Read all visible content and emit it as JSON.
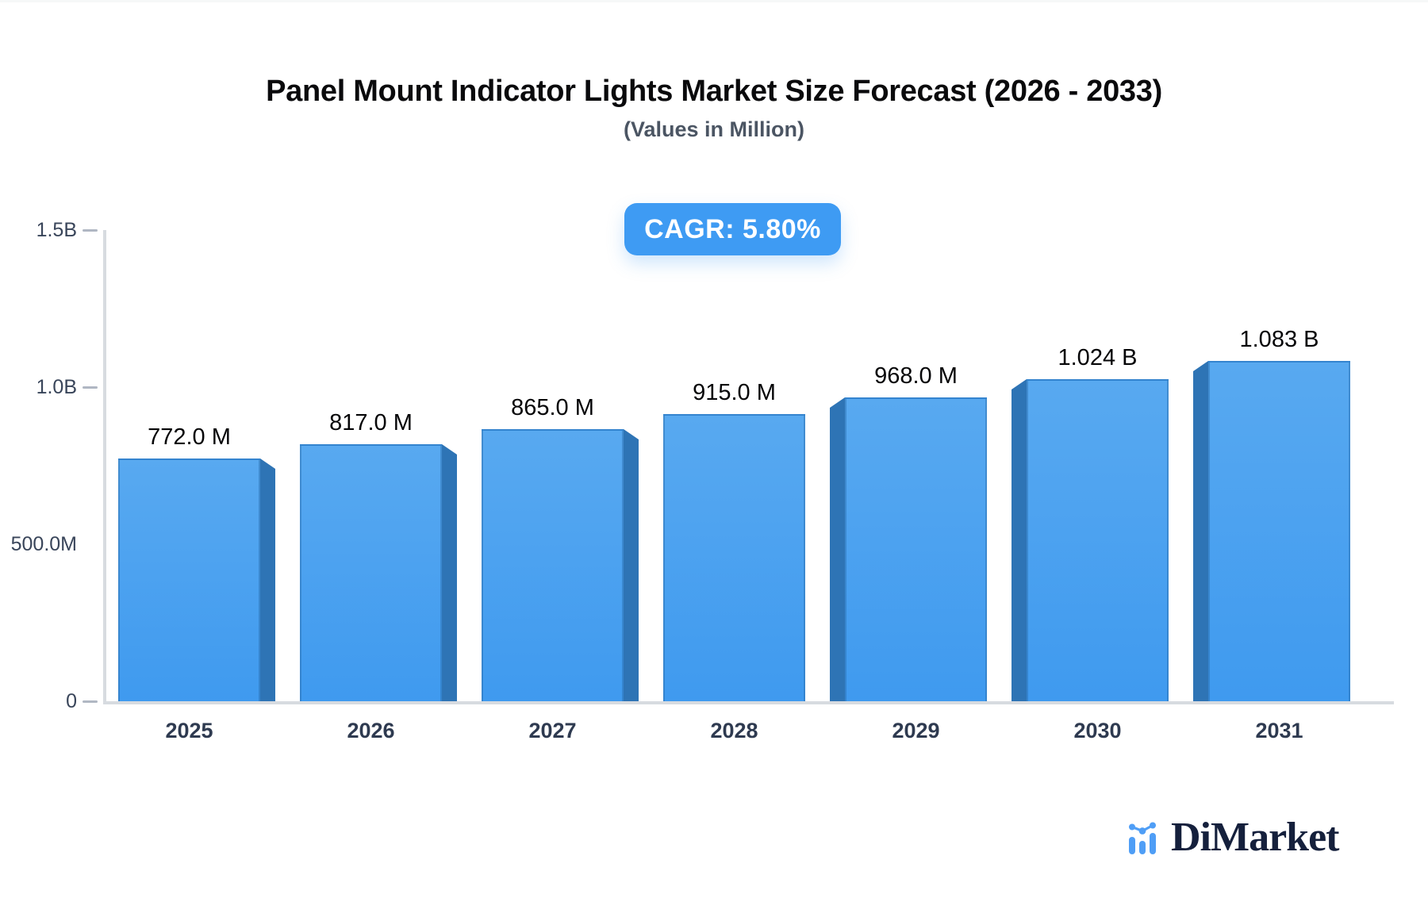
{
  "page": {
    "title": "Panel Mount Indicator Lights Market Size Forecast (2026 - 2033)",
    "subtitle": "(Values in Million)",
    "cagr_badge": "CAGR: 5.80%"
  },
  "chart_data": {
    "type": "bar",
    "title": "Panel Mount Indicator Lights Market Size Forecast (2026 - 2033)",
    "subtitle": "(Values in Million)",
    "cagr_percent": 5.8,
    "categories": [
      "2025",
      "2026",
      "2027",
      "2028",
      "2029",
      "2030",
      "2031"
    ],
    "values_millions": [
      772,
      817,
      865,
      915,
      968,
      1024,
      1083
    ],
    "bar_labels": [
      "772.0 M",
      "817.0 M",
      "865.0 M",
      "915.0 M",
      "968.0 M",
      "1.024 B",
      "1.083 B"
    ],
    "y_ticks": [
      {
        "label": "0",
        "millions": 0,
        "dash": true
      },
      {
        "label": "500.0M",
        "millions": 500,
        "dash": false
      },
      {
        "label": "1.0B",
        "millions": 1000,
        "dash": true
      },
      {
        "label": "1.5B",
        "millions": 1500,
        "dash": true
      }
    ],
    "ylim_millions": [
      0,
      1500
    ],
    "grid": false,
    "legend": "none",
    "bar_color_top": "#58a9f0",
    "bar_color_bottom": "#3f9aef",
    "bar_side_color": "#2e74b5",
    "accent_color": "#3e9bf3"
  },
  "branding": {
    "logo_text": "DiMarket"
  }
}
